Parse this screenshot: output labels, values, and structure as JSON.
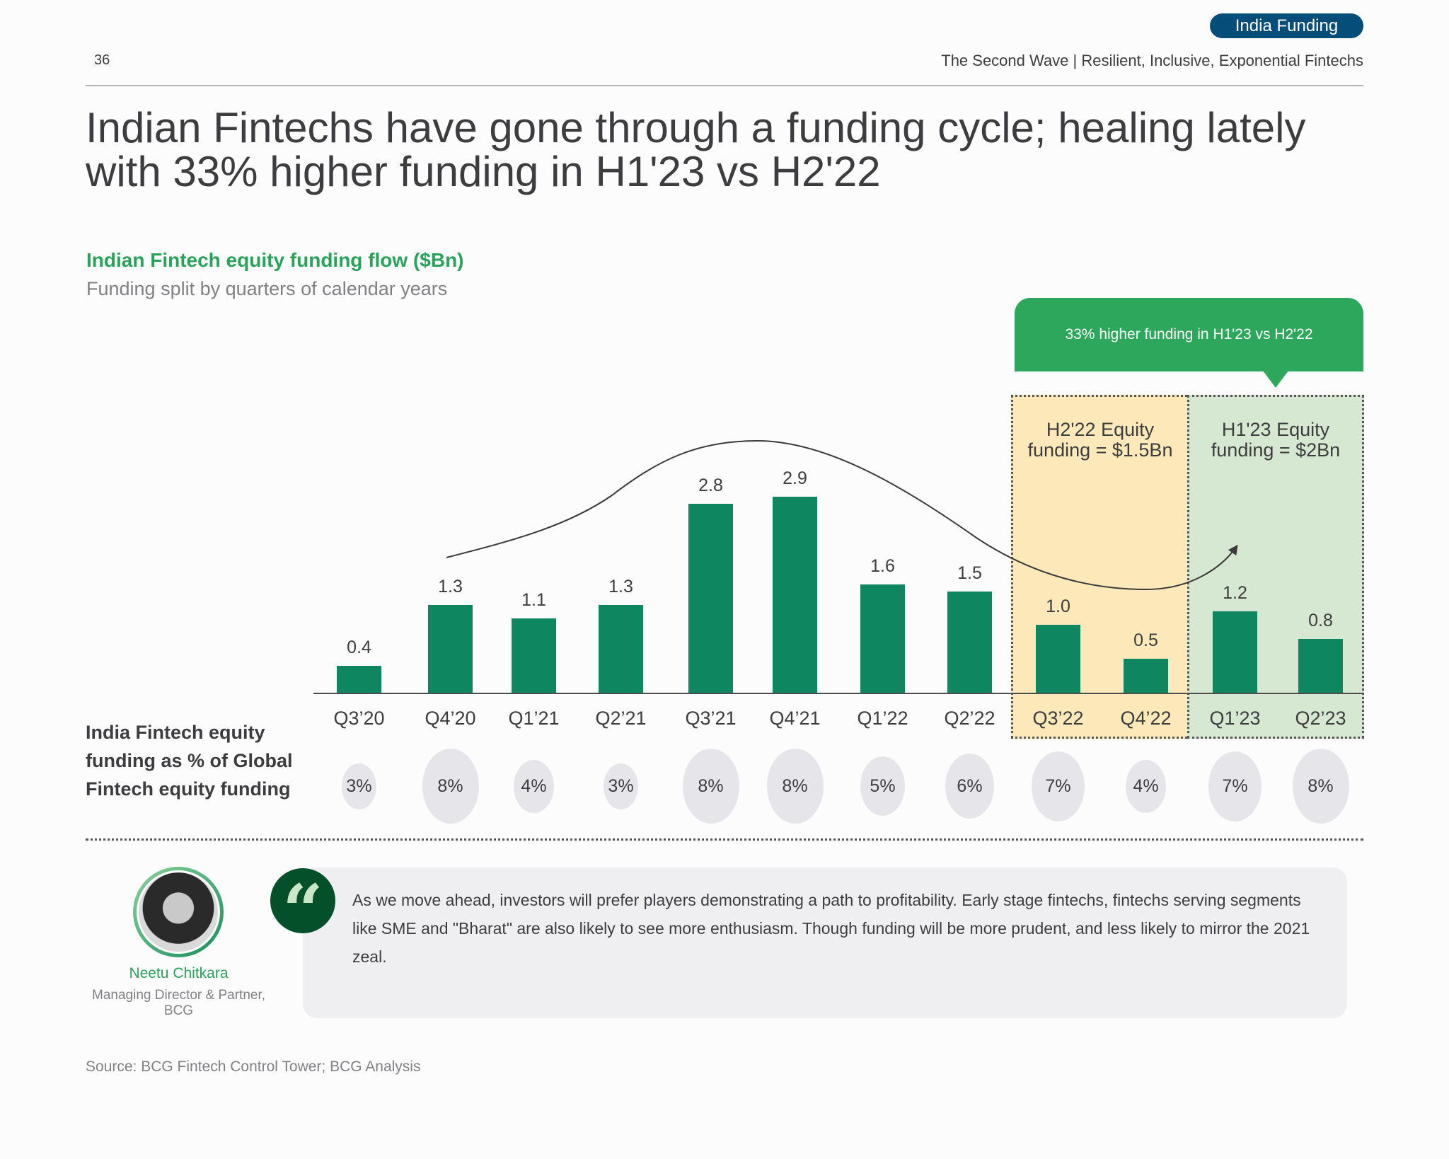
{
  "header": {
    "section_pill": "India Funding",
    "page_number": "36",
    "running_head": "The Second Wave | Resilient, Inclusive, Exponential Fintechs"
  },
  "title": "Indian Fintechs have gone through a funding cycle; healing lately with 33% higher funding in H1'23 vs H2'22",
  "chart_header": {
    "title": "Indian Fintech equity funding flow ($Bn)",
    "subtitle": "Funding split by quarters of calendar years"
  },
  "callout": {
    "text": "33% higher funding in H1'23 vs H2'22"
  },
  "highlight_boxes": [
    {
      "label": "H2'22 Equity funding = $1.5Bn",
      "color": "#fde8ba"
    },
    {
      "label": "H1'23 Equity funding = $2Bn",
      "color": "#d6e8d2"
    }
  ],
  "pct_row_label": "India Fintech equity funding as % of Global Fintech equity funding",
  "chart_data": {
    "type": "bar",
    "title": "Indian Fintech equity funding flow ($Bn)",
    "subtitle": "Funding split by quarters of calendar years",
    "xlabel": "",
    "ylabel": "$Bn",
    "categories": [
      "Q3’20",
      "Q4’20",
      "Q1’21",
      "Q2’21",
      "Q3’21",
      "Q4’21",
      "Q1’22",
      "Q2’22",
      "Q3’22",
      "Q4’22",
      "Q1’23",
      "Q2’23"
    ],
    "values": [
      0.4,
      1.3,
      1.1,
      1.3,
      2.8,
      2.9,
      1.6,
      1.5,
      1.0,
      0.5,
      1.2,
      0.8
    ],
    "value_labels": [
      "0.4",
      "1.3",
      "1.1",
      "1.3",
      "2.8",
      "2.9",
      "1.6",
      "1.5",
      "1.0",
      "0.5",
      "1.2",
      "0.8"
    ],
    "secondary_series": {
      "name": "India Fintech equity funding as % of Global Fintech equity funding",
      "values": [
        3,
        8,
        4,
        3,
        8,
        8,
        5,
        6,
        7,
        4,
        7,
        8
      ],
      "labels": [
        "3%",
        "8%",
        "4%",
        "3%",
        "8%",
        "8%",
        "5%",
        "6%",
        "7%",
        "4%",
        "7%",
        "8%"
      ]
    },
    "annotations": [
      "33% higher funding in H1'23 vs H2'22",
      "H2'22 Equity funding = $1.5Bn",
      "H1'23 Equity funding = $2Bn"
    ],
    "bar_color": "#0e8660",
    "ylim": [
      0,
      3.2
    ],
    "grid": false,
    "legend": "none"
  },
  "quote": {
    "person_name": "Neetu Chitkara",
    "person_role": "Managing Director & Partner, BCG",
    "text": "As we move ahead, investors will prefer players demonstrating a path to profitability. Early stage fintechs, fintechs serving segments like SME and \"Bharat\" are also likely to see more enthusiasm. Though funding will be more prudent, and less likely to mirror the 2021 zeal."
  },
  "source": "Source: BCG Fintech Control Tower; BCG Analysis",
  "colors": {
    "pill": "#064e7a",
    "accent_green": "#29a35a",
    "bar": "#0e8660",
    "callout": "#2da75b",
    "quote_mark": "#04502a"
  }
}
